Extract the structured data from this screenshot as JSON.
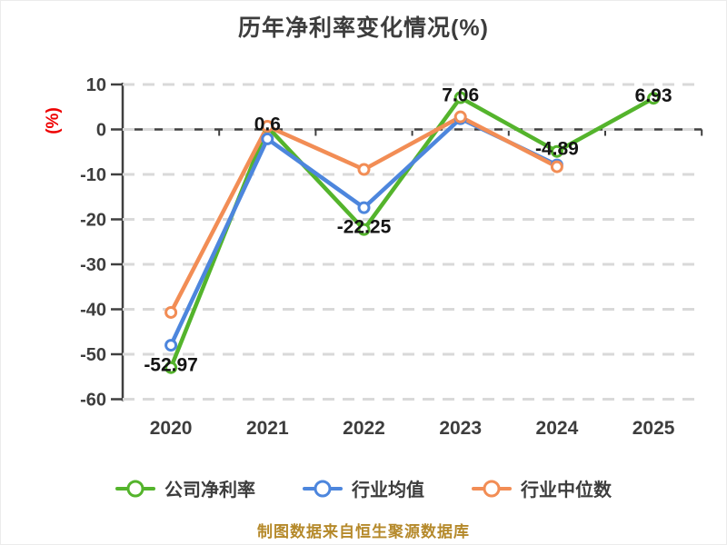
{
  "chart_data": {
    "type": "line",
    "title": "历年净利率变化情况(%)",
    "ylabel": "(%)",
    "categories": [
      "2020",
      "2021",
      "2022",
      "2023",
      "2024",
      "2025"
    ],
    "series": [
      {
        "name": "公司净利率",
        "color": "#54b42c",
        "values": [
          -52.97,
          0.6,
          -22.25,
          7.06,
          -4.89,
          6.93
        ],
        "point_labels": [
          "-52.97",
          "0.6",
          "-22.25",
          "7.06",
          "-4.89",
          "6.93"
        ]
      },
      {
        "name": "行业均值",
        "color": "#4d86dd",
        "values": [
          -48.0,
          -2.1,
          -17.4,
          2.4,
          -7.9,
          null
        ],
        "point_labels": []
      },
      {
        "name": "行业中位数",
        "color": "#f28d55",
        "values": [
          -40.7,
          0.7,
          -8.9,
          2.8,
          -8.3,
          null
        ],
        "point_labels": []
      }
    ],
    "ylim": [
      -60,
      10
    ],
    "yticks": [
      10,
      0,
      -10,
      -20,
      -30,
      -40,
      -50,
      -60
    ],
    "grid": "horizontal-dashed",
    "legend_position": "bottom"
  },
  "footer": {
    "source_note": "制图数据来自恒生聚源数据库"
  },
  "colors": {
    "title_text": "#3d3d3d",
    "axis": "#3f3f3f",
    "gridline": "#d9d9d9",
    "tick_text": "#3d3d3d",
    "point_label_text": "#141414",
    "ylabel_red": "#ee0000",
    "caption_gold": "#b5892a",
    "marker_fill": "#ffffff"
  }
}
